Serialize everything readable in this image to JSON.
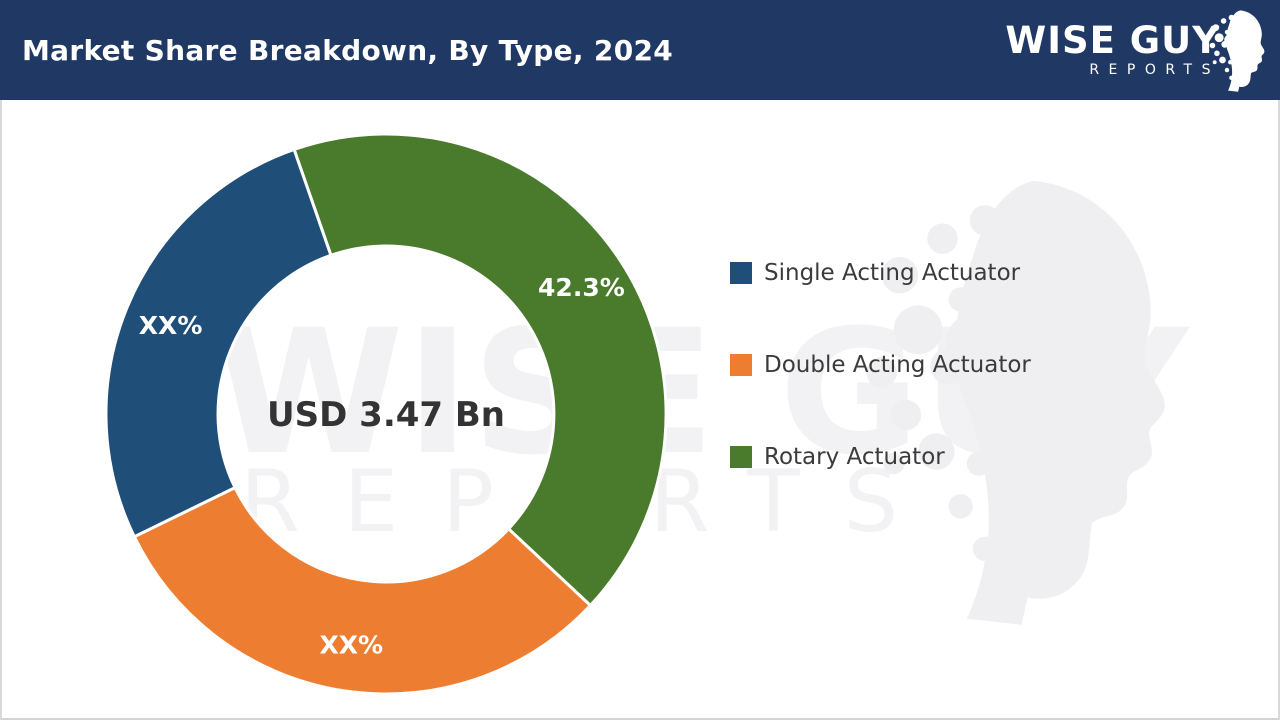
{
  "header": {
    "title": "Market Share Breakdown, By Type, 2024"
  },
  "logo": {
    "name": "WISE GUY",
    "tagline": "REPORTS"
  },
  "watermark": {
    "name": "WISE GUY",
    "tagline": "REPORTS"
  },
  "chart_data": {
    "type": "pie",
    "subtype": "donut",
    "title": "Market Share Breakdown, By Type, 2024",
    "center_label": "USD 3.47 Bn",
    "categories": [
      "Single Acting Actuator",
      "Rotary Actuator",
      "Double Acting Actuator"
    ],
    "values": [
      26.9,
      42.3,
      30.8
    ],
    "display_labels": [
      "XX%",
      "42.3%",
      "XX%"
    ],
    "colors": [
      "#1F4E79",
      "#4A7A2C",
      "#ED7D31"
    ],
    "start_angle_deg": 244,
    "legend_position": "right"
  },
  "legend": {
    "items": [
      {
        "label": "Single Acting Actuator",
        "color": "#1F4E79"
      },
      {
        "label": "Double Acting Actuator",
        "color": "#ED7D31"
      },
      {
        "label": "Rotary Actuator",
        "color": "#4A7A2C"
      }
    ]
  },
  "colors": {
    "header_bg": "#1F3864",
    "center_text": "#333333",
    "slice_label_text": "#FFFFFF",
    "watermark": "#F2F2F5",
    "border": "#D9D9D9"
  }
}
